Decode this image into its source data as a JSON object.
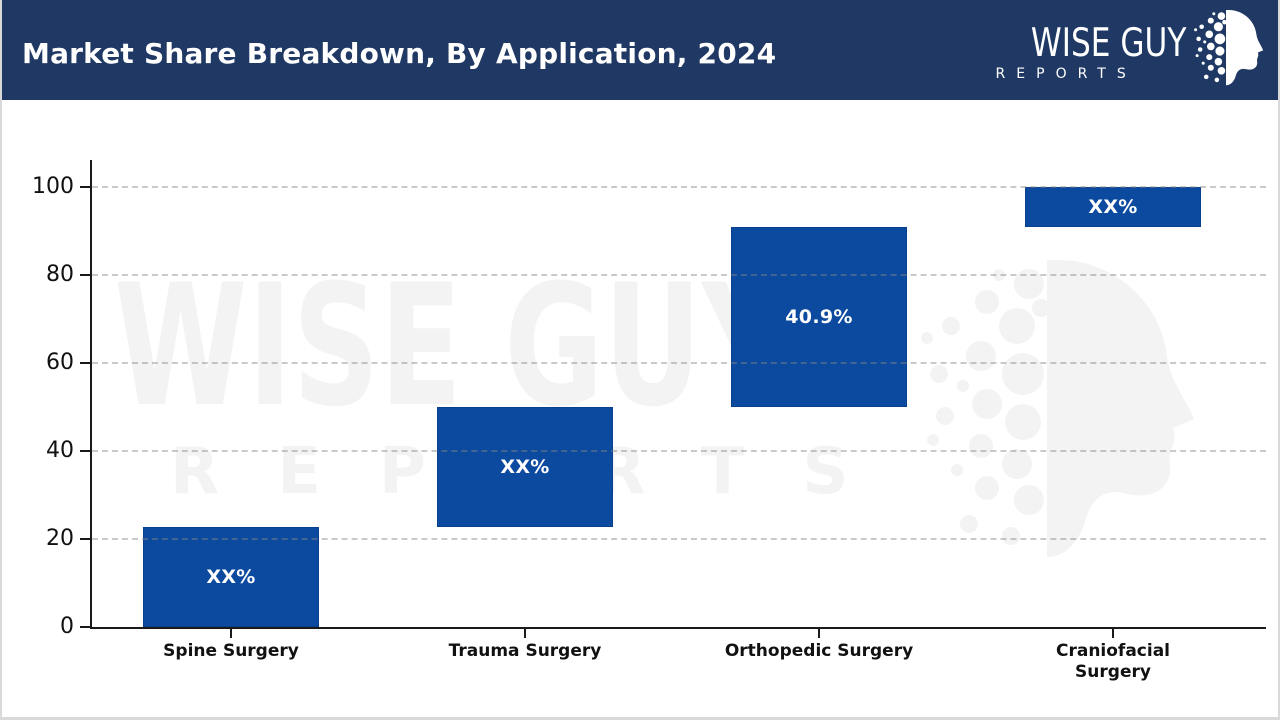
{
  "header": {
    "title": "Market Share Breakdown, By Application, 2024",
    "bg_color": "#1f3864",
    "logo": {
      "line1": "WISE GUY",
      "line2": "REPORTS"
    }
  },
  "watermark": {
    "line1": "WISE GUY",
    "line2": "REPORTS"
  },
  "chart_data": {
    "type": "bar",
    "variant": "floating-waterfall",
    "title": "Market Share Breakdown, By Application, 2024",
    "categories": [
      "Spine Surgery",
      "Trauma Surgery",
      "Orthopedic Surgery",
      "Craniofacial\nSurgery"
    ],
    "unit": "%",
    "series": [
      {
        "name": "Market Share",
        "segments": [
          {
            "category": "Spine Surgery",
            "start": 0,
            "end": 22.7,
            "label": "XX%"
          },
          {
            "category": "Trauma Surgery",
            "start": 22.7,
            "end": 50,
            "label": "XX%"
          },
          {
            "category": "Orthopedic Surgery",
            "start": 50,
            "end": 90.9,
            "label": "40.9%"
          },
          {
            "category": "Craniofacial Surgery",
            "start": 90.9,
            "end": 100,
            "label": "XX%"
          }
        ]
      }
    ],
    "ylim": [
      0,
      100
    ],
    "yticks": [
      0,
      20,
      40,
      60,
      80,
      100
    ],
    "bar_color": "#0b4a9f",
    "grid": {
      "horizontal": true,
      "style": "dashed",
      "above_bars": true
    },
    "legend": "none"
  }
}
